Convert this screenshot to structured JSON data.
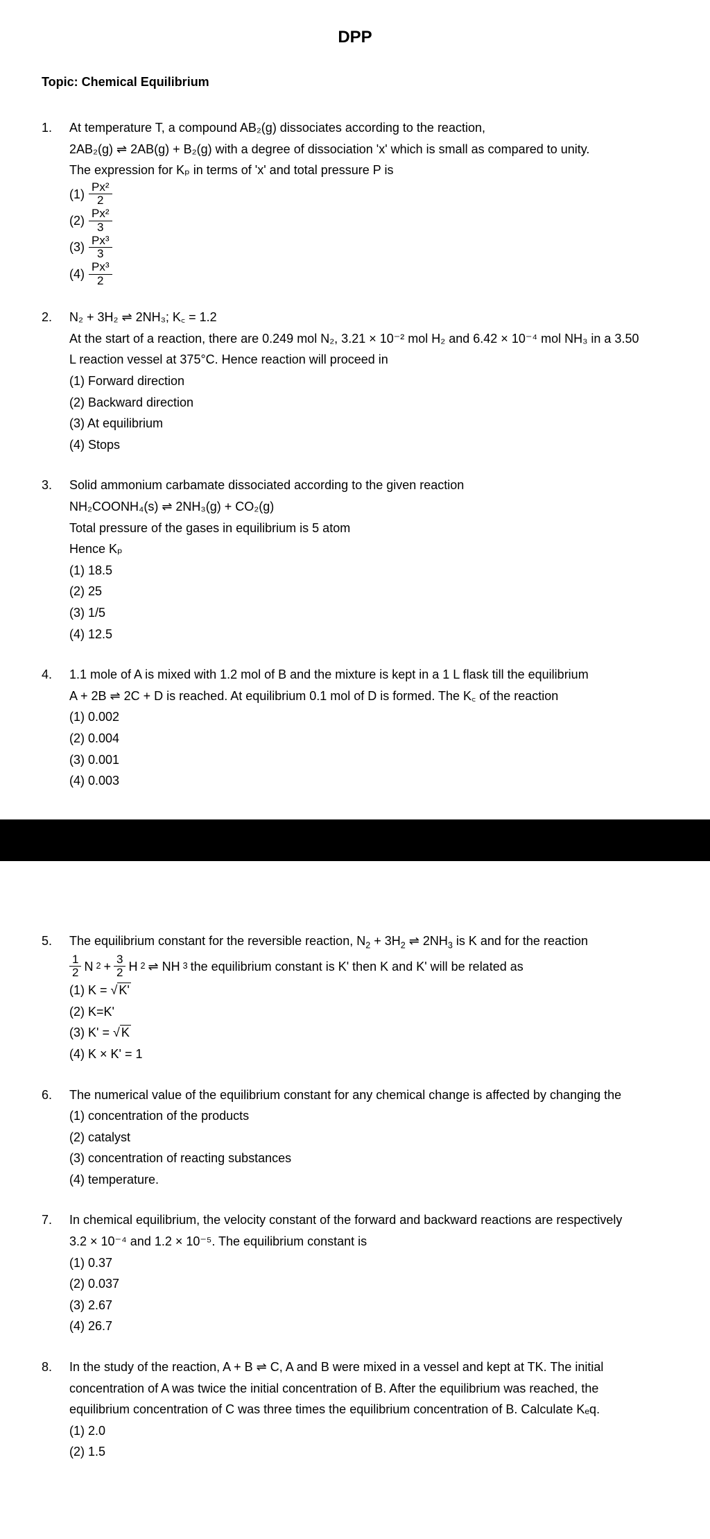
{
  "title": "DPP",
  "topic": "Topic: Chemical Equilibrium",
  "questions": [
    {
      "num": "1.",
      "stem_lines": [
        "At temperature T, a compound AB₂(g) dissociates according to the reaction,",
        "2AB₂(g) ⇌ 2AB(g) + B₂(g) with a degree of dissociation 'x' which is small as compared to unity.",
        "The expression for Kₚ in terms of 'x' and total pressure P is"
      ],
      "frac_options": [
        {
          "label": "(1)",
          "num": "Px²",
          "den": "2"
        },
        {
          "label": "(2)",
          "num": "Px²",
          "den": "3"
        },
        {
          "label": "(3)",
          "num": "Px³",
          "den": "3"
        },
        {
          "label": "(4)",
          "num": "Px³",
          "den": "2"
        }
      ]
    },
    {
      "num": "2.",
      "stem_lines": [
        "N₂ + 3H₂ ⇌ 2NH₃; K꜀ = 1.2",
        "At the start of a reaction, there are 0.249 mol N₂, 3.21 × 10⁻² mol H₂ and 6.42 × 10⁻⁴ mol NH₃ in a 3.50",
        "L reaction vessel at 375°C. Hence reaction will proceed in"
      ],
      "options": [
        "(1) Forward direction",
        "(2) Backward direction",
        "(3) At equilibrium",
        "(4) Stops"
      ]
    },
    {
      "num": "3.",
      "stem_lines": [
        "Solid ammonium carbamate dissociated according to the given reaction",
        "NH₂COONH₄(s) ⇌ 2NH₃(g) + CO₂(g)",
        "Total pressure of the gases in equilibrium is 5 atom",
        "Hence Kₚ"
      ],
      "options": [
        "(1) 18.5",
        "(2) 25",
        "(3) 1/5",
        "(4) 12.5"
      ]
    },
    {
      "num": "4.",
      "stem_lines": [
        "1.1 mole of A is mixed with 1.2 mol of B and the mixture is kept in a 1 L flask till the equilibrium",
        "A + 2B ⇌ 2C + D is reached. At equilibrium 0.1 mol of D is formed. The K꜀ of the reaction"
      ],
      "options": [
        "(1) 0.002",
        "(2) 0.004",
        "(3) 0.001",
        "(4) 0.003"
      ]
    },
    {
      "num": "5.",
      "html": true
    },
    {
      "num": "6.",
      "stem_lines": [
        "The numerical value of the equilibrium constant for any chemical change is affected by changing the"
      ],
      "options": [
        "(1) concentration of the products",
        "(2) catalyst",
        "(3) concentration of reacting substances",
        "(4) temperature."
      ]
    },
    {
      "num": "7.",
      "stem_lines": [
        "In chemical equilibrium, the velocity constant of the forward and backward reactions are respectively",
        "3.2 × 10⁻⁴ and 1.2 × 10⁻⁵. The equilibrium constant is"
      ],
      "options": [
        "(1) 0.37",
        "(2) 0.037",
        "(3) 2.67",
        "(4) 26.7"
      ]
    },
    {
      "num": "8.",
      "stem_lines": [
        "In the study of the reaction, A + B ⇌ C, A and B were mixed in a vessel and kept at TK. The initial",
        "concentration of A was twice the initial concentration of B. After the equilibrium was reached, the",
        "equilibrium concentration of C was three times the equilibrium concentration of B. Calculate Kₑq."
      ],
      "options": [
        "(1) 2.0",
        "(2) 1.5"
      ]
    }
  ],
  "q5": {
    "line1_a": "The equilibrium constant for the reversible reaction, N",
    "line1_b": " + 3H",
    "line1_c": " ⇌ 2NH",
    "line1_d": " is K and for the reaction",
    "line2_tail": " the equilibrium constant is K' then K and K' will be related as",
    "opt1": "(1) K = √",
    "opt1_rad": "K'",
    "opt2": "(2) K=K'",
    "opt3": "(3) K' = √",
    "opt3_rad": "K",
    "opt4": "(4) K × K' = 1"
  }
}
